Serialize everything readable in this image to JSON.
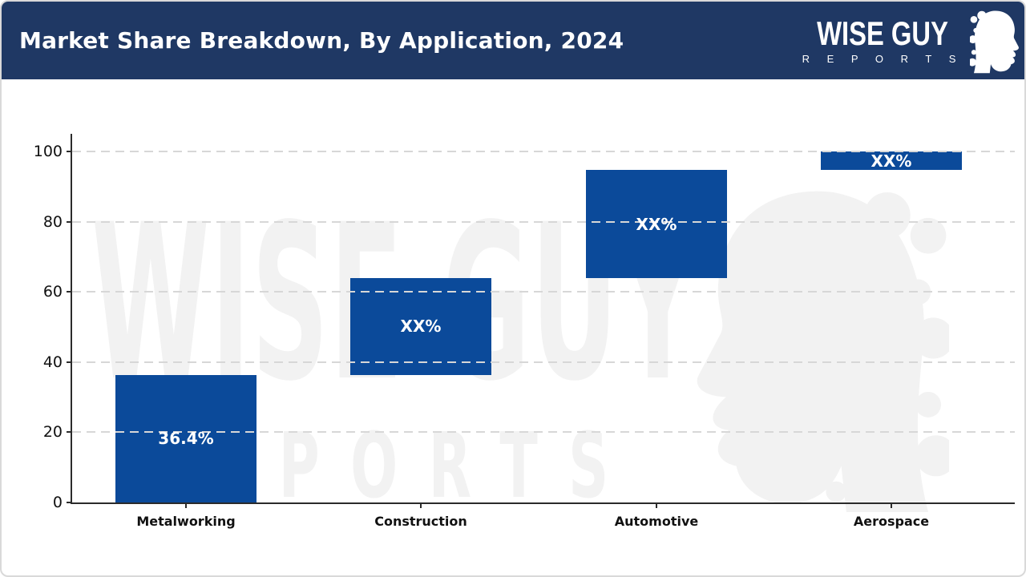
{
  "header": {
    "title": "Market Share Breakdown, By Application, 2024",
    "logo": {
      "line1": "WISE GUY",
      "line2": "R E P O R T S"
    }
  },
  "watermark": {
    "line1": "WISE GUY",
    "line2": "REPORTS"
  },
  "colors": {
    "header_bg": "#1f3864",
    "bar": "#0b4a9a",
    "bar_label": "#ffffff",
    "gridline": "#d7d7d7",
    "axis": "#2b2b2b",
    "watermark": "#f2f2f2",
    "frame_border": "#d9d9d9"
  },
  "chart_data": {
    "type": "bar",
    "subtype": "floating-segment (waterfall-style market share breakdown)",
    "title": "Market Share Breakdown, By Application, 2024",
    "categories": [
      "Metalworking",
      "Construction",
      "Automotive",
      "Aerospace"
    ],
    "segments": [
      {
        "category": "Metalworking",
        "start": 0,
        "end": 36.4,
        "label": "36.4%"
      },
      {
        "category": "Construction",
        "start": 36.4,
        "end": 63.9,
        "label": "XX%"
      },
      {
        "category": "Automotive",
        "start": 63.9,
        "end": 94.7,
        "label": "XX%"
      },
      {
        "category": "Aerospace",
        "start": 94.7,
        "end": 100,
        "label": "XX%"
      }
    ],
    "xlabel": "",
    "ylabel": "",
    "ylim": [
      0,
      100
    ],
    "yticks": [
      0,
      20,
      40,
      60,
      80,
      100
    ],
    "grid": "horizontal dashed, drawn over bars",
    "legend": "none",
    "bar_color": "#0b4a9a",
    "masked_values_note": "All segment labels except Metalworking are masked as XX% in the source image"
  }
}
